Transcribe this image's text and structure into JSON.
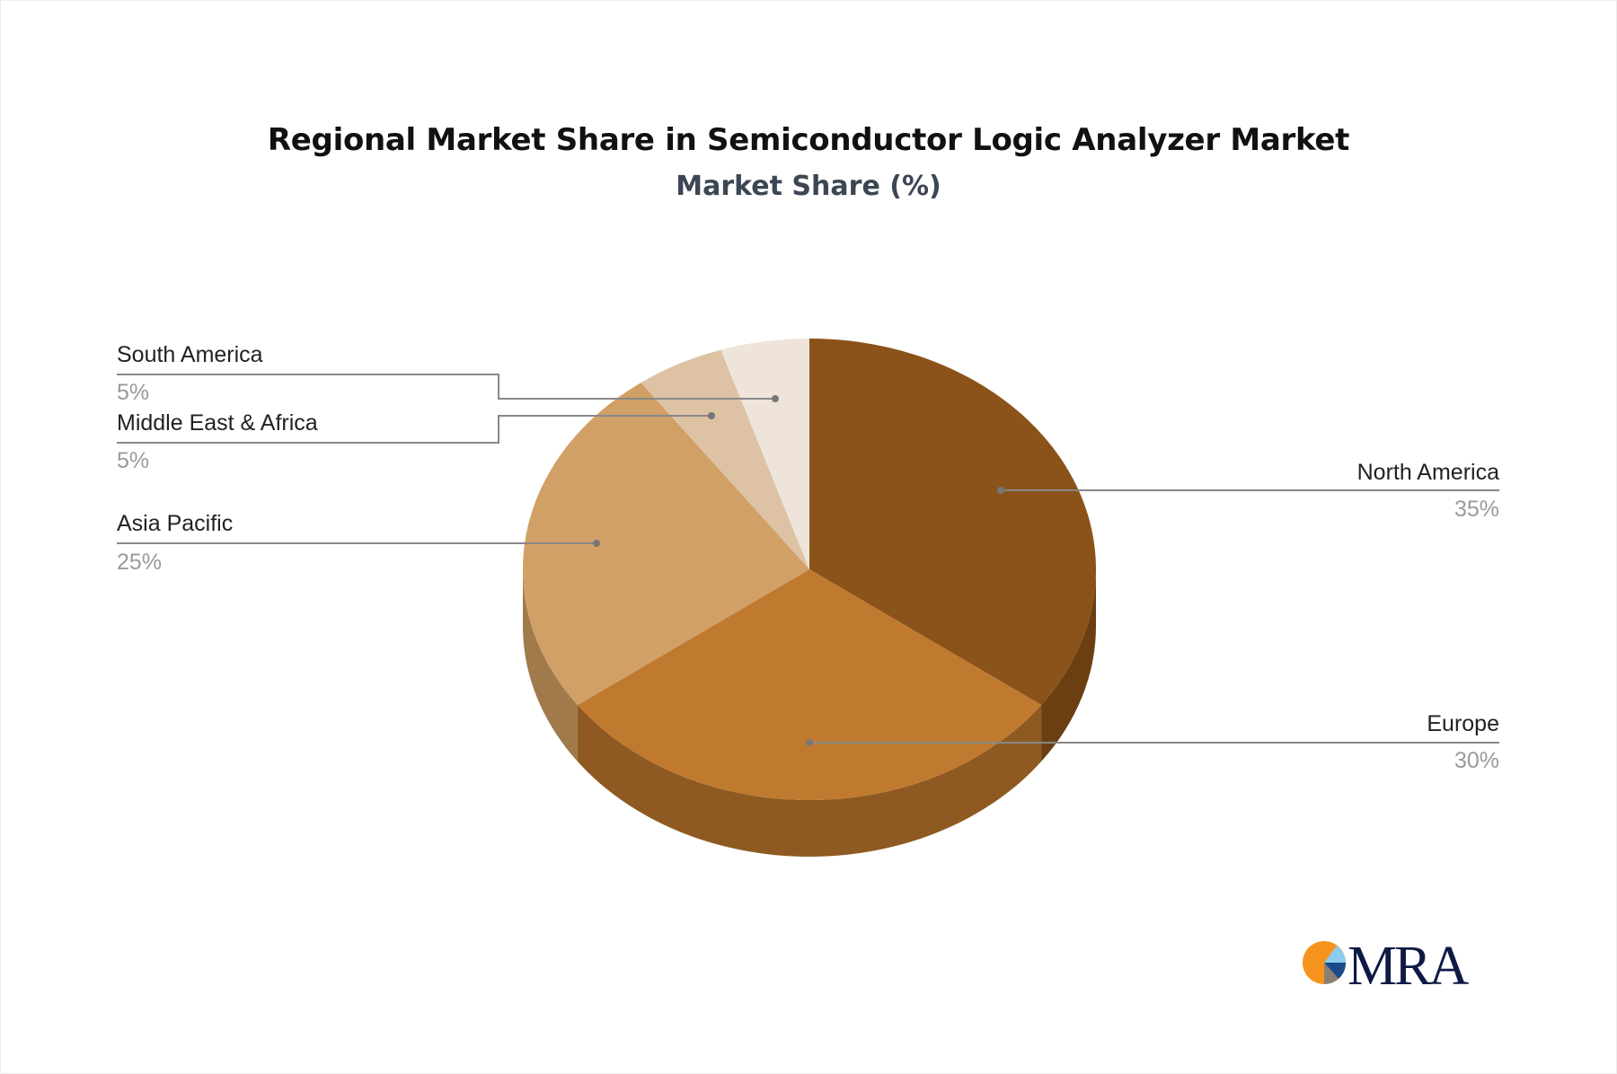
{
  "chart_data": {
    "type": "pie",
    "title": "Regional Market Share in Semiconductor Logic Analyzer Market",
    "subtitle": "Market Share (%)",
    "style": "3d",
    "slices": [
      {
        "label": "North America",
        "value": 35,
        "display": "35%",
        "color": "#8B5319",
        "side_color": "#6B3F12"
      },
      {
        "label": "Europe",
        "value": 30,
        "display": "30%",
        "color": "#C07A2F",
        "side_color": "#8F5A22"
      },
      {
        "label": "Asia Pacific",
        "value": 25,
        "display": "25%",
        "color": "#D1A067",
        "side_color": "#A07A4B"
      },
      {
        "label": "Middle East & Africa",
        "value": 5,
        "display": "5%",
        "color": "#DDC2A4",
        "side_color": "#B29A80"
      },
      {
        "label": "South America",
        "value": 5,
        "display": "5%",
        "color": "#EEE4DA",
        "side_color": "#C8BDB2"
      }
    ]
  },
  "logo": {
    "text": "MRA",
    "colors": [
      "#F7941D",
      "#8DCBEF",
      "#1B4A8A",
      "#8A8072",
      "#0E1A45"
    ]
  }
}
